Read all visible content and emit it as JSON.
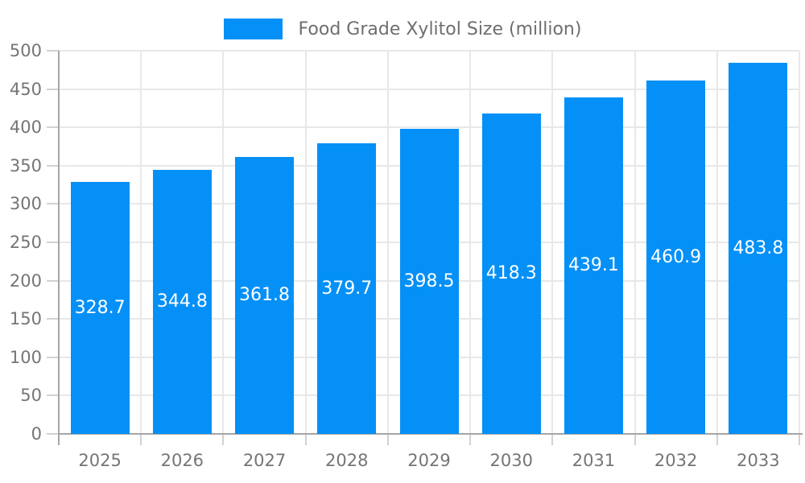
{
  "legend": {
    "swatch_color": "#0590f8",
    "label": "Food Grade Xylitol Size (million)"
  },
  "chart_data": {
    "type": "bar",
    "title": "Food Grade Xylitol Size (million)",
    "categories": [
      "2025",
      "2026",
      "2027",
      "2028",
      "2029",
      "2030",
      "2031",
      "2032",
      "2033"
    ],
    "series": [
      {
        "name": "Food Grade Xylitol Size (million)",
        "color": "#0590f8",
        "values": [
          328.7,
          344.8,
          361.8,
          379.7,
          398.5,
          418.3,
          439.1,
          460.9,
          483.8
        ]
      }
    ],
    "value_labels": [
      "328.7",
      "344.8",
      "361.8",
      "379.7",
      "398.5",
      "418.3",
      "439.1",
      "460.9",
      "483.8"
    ],
    "value_label_position": "inside-center",
    "xlabel": "",
    "ylabel": "",
    "ylim": [
      0,
      500
    ],
    "ytick_step": 50,
    "yticks": [
      0,
      50,
      100,
      150,
      200,
      250,
      300,
      350,
      400,
      450,
      500
    ],
    "grid": true,
    "legend_position": "top-center"
  },
  "colors": {
    "bar": "#0590f8",
    "gridline": "#e8e8e8",
    "axis_line": "#a6a6a6",
    "tick": "#d2d2d2",
    "axis_text": "#757575",
    "legend_text": "#6e6e6e",
    "value_text": "#ffffff",
    "background": "#ffffff"
  }
}
